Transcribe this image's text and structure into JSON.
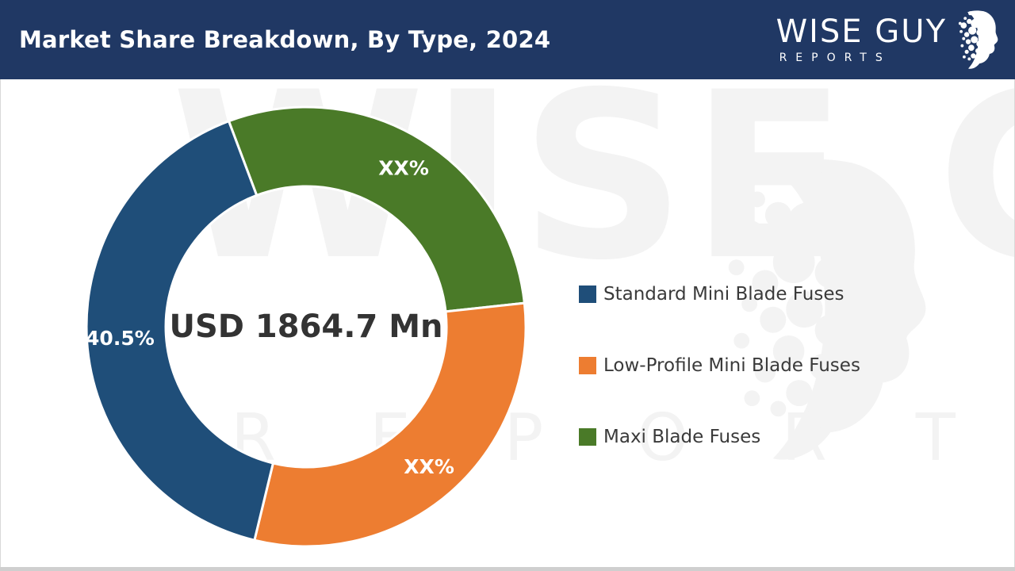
{
  "header": {
    "title": "Market Share Breakdown, By Type, 2024",
    "bg_color": "#203864",
    "logo": {
      "line1": "WISE GUY",
      "line2": "REPORTS"
    }
  },
  "watermark": {
    "line1": "WISE GUY",
    "line2": "REPORTS",
    "color": "#f3f3f3"
  },
  "chart_data": {
    "type": "pie",
    "subtype": "donut",
    "title": "Market Share Breakdown, By Type, 2024",
    "center_label": "USD 1864.7 Mn",
    "segments": [
      {
        "name": "Standard Mini Blade Fuses",
        "label": "40.5%",
        "value": 40.5,
        "value_estimated": false,
        "color": "#1f4e79"
      },
      {
        "name": "Low-Profile Mini Blade Fuses",
        "label": "XX%",
        "value": 30.5,
        "value_estimated": true,
        "color": "#ed7d31"
      },
      {
        "name": "Maxi Blade Fuses",
        "label": "XX%",
        "value": 29.0,
        "value_estimated": true,
        "color": "#4a7a28"
      }
    ],
    "draw_order_clockwise": [
      "Maxi Blade Fuses",
      "Low-Profile Mini Blade Fuses",
      "Standard Mini Blade Fuses"
    ],
    "start_angle_deg_cw_from_top": -20.6,
    "inner_radius_ratio": 0.64,
    "separator_color": "#ffffff",
    "label_color": "#ffffff",
    "legend_position": "right"
  },
  "legend": {
    "items": [
      {
        "label": "Standard Mini Blade Fuses",
        "color": "#1f4e79"
      },
      {
        "label": "Low-Profile Mini Blade Fuses",
        "color": "#ed7d31"
      },
      {
        "label": "Maxi Blade Fuses",
        "color": "#4a7a28"
      }
    ]
  }
}
